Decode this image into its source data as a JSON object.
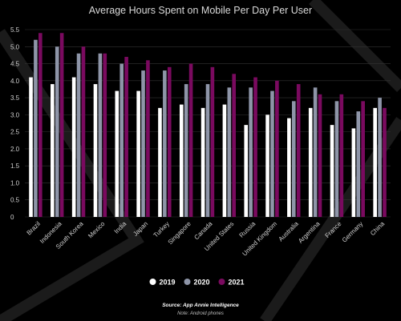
{
  "chart_data": {
    "type": "bar",
    "title": "Average Hours Spent on Mobile Per Day Per User",
    "categories": [
      "Brazil",
      "Indonesia",
      "South Korea",
      "Mexico",
      "India",
      "Japan",
      "Turkey",
      "Singapore",
      "Canada",
      "United States",
      "Russia",
      "United Kingdom",
      "Australia",
      "Argentina",
      "France",
      "Germany",
      "China"
    ],
    "series": [
      {
        "name": "2019",
        "color": "#ffffff",
        "values": [
          4.1,
          3.9,
          4.1,
          3.9,
          3.7,
          3.7,
          3.2,
          3.3,
          3.2,
          3.3,
          2.7,
          3.0,
          2.9,
          3.2,
          2.7,
          2.6,
          3.2
        ]
      },
      {
        "name": "2020",
        "color": "#8e95a8",
        "values": [
          5.2,
          5.0,
          4.8,
          4.8,
          4.5,
          4.3,
          4.3,
          3.9,
          3.9,
          3.8,
          3.8,
          3.7,
          3.4,
          3.8,
          3.4,
          3.1,
          3.5
        ]
      },
      {
        "name": "2021",
        "color": "#7a0a5f",
        "values": [
          5.4,
          5.4,
          5.0,
          4.8,
          4.7,
          4.6,
          4.4,
          4.5,
          4.4,
          4.2,
          4.1,
          4.0,
          3.9,
          3.6,
          3.6,
          3.4,
          3.2
        ]
      }
    ],
    "ylim": [
      0,
      5.5
    ],
    "yticks": [
      "0",
      "0.5",
      "1.0",
      "1.5",
      "2.0",
      "2.5",
      "3.0",
      "3.5",
      "4.0",
      "4.5",
      "5.0",
      "5.5"
    ],
    "grid": true,
    "legend_position": "bottom-center"
  },
  "footer": {
    "source": "Source: App Annie Intelligence",
    "note": "Note: Android phones"
  },
  "colors": {
    "background": "#000000",
    "grid": "#333333"
  }
}
